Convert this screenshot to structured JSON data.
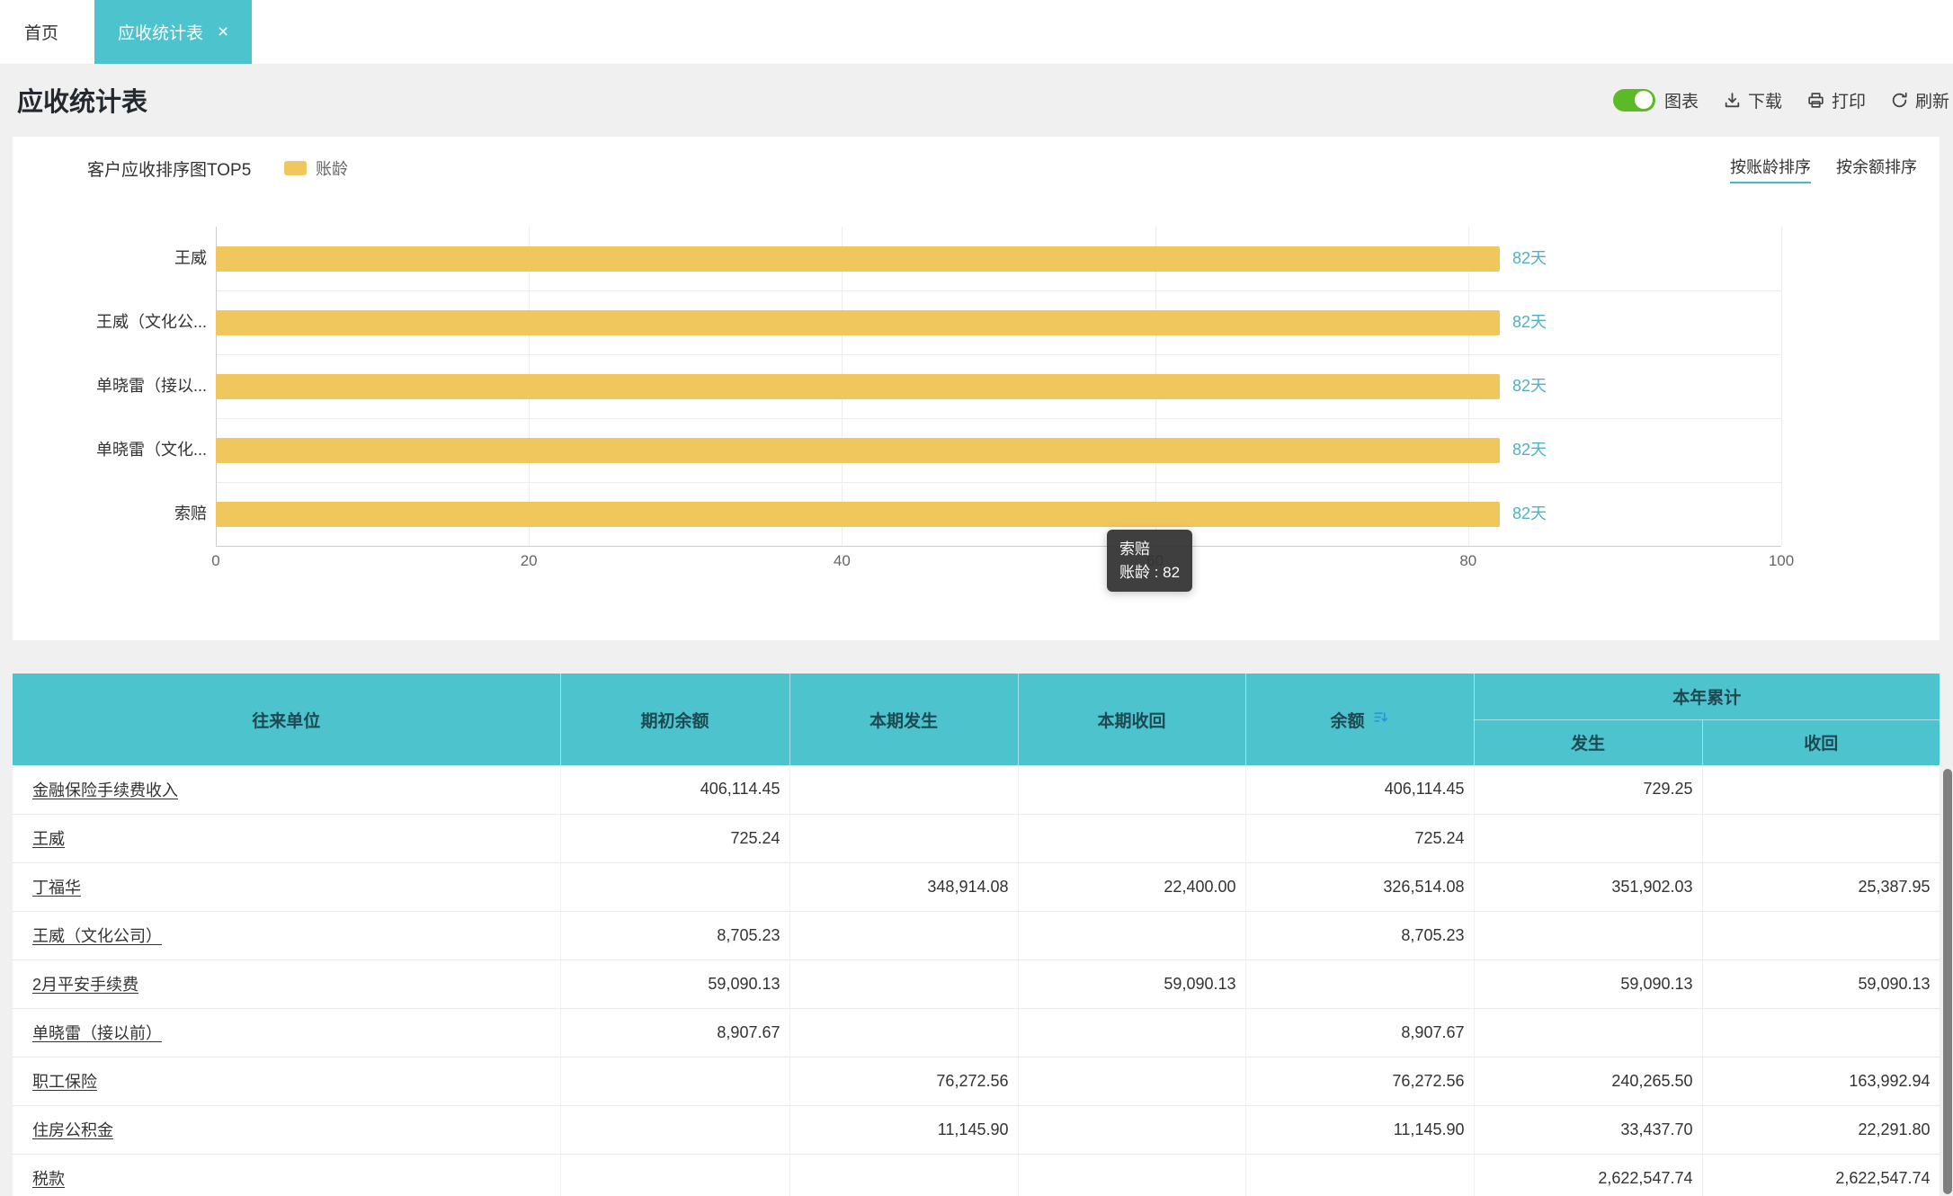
{
  "colors": {
    "teal": "#4CC3CD",
    "bar": "#F0C75C",
    "bar_value_label": "#4FB0C8",
    "toggle_on": "#5DBA27",
    "tooltip_bg": "#303030"
  },
  "tabs": [
    {
      "label": "首页"
    },
    {
      "label": "应收统计表",
      "close": "×"
    }
  ],
  "toolbar": {
    "title": "应收统计表",
    "toggle_label": "图表",
    "download_label": "下载",
    "print_label": "打印",
    "refresh_label": "刷新"
  },
  "chart": {
    "title": "客户应收排序图TOP5",
    "legend_label": "账龄",
    "sort_by_age": "按账龄排序",
    "sort_by_balance": "按余额排序",
    "tooltip": {
      "name": "索赔",
      "value": "账龄 : 82"
    }
  },
  "chart_data": {
    "type": "bar",
    "orientation": "horizontal",
    "title": "客户应收排序图TOP5",
    "series_name": "账龄",
    "categories": [
      "王威",
      "王威（文化公...",
      "单晓雷（接以...",
      "单晓雷（文化...",
      "索赔"
    ],
    "values": [
      82,
      82,
      82,
      82,
      82
    ],
    "value_labels": [
      "82天",
      "82天",
      "82天",
      "82天",
      "82天"
    ],
    "xlim": [
      0,
      100
    ],
    "xticks": [
      0,
      20,
      40,
      60,
      80,
      100
    ],
    "legend_position": "top-left",
    "grid": true
  },
  "table": {
    "headers": {
      "unit": "往来单位",
      "opening_balance": "期初余额",
      "current_incurred": "本期发生",
      "current_recovered": "本期收回",
      "balance": "余额",
      "ytd": "本年累计",
      "ytd_incurred": "发生",
      "ytd_recovered": "收回"
    },
    "rows": [
      [
        "金融保险手续费收入",
        "406,114.45",
        "",
        "",
        "406,114.45",
        "729.25",
        ""
      ],
      [
        "王威",
        "725.24",
        "",
        "",
        "725.24",
        "",
        ""
      ],
      [
        "丁福华",
        "",
        "348,914.08",
        "22,400.00",
        "326,514.08",
        "351,902.03",
        "25,387.95"
      ],
      [
        "王威（文化公司）",
        "8,705.23",
        "",
        "",
        "8,705.23",
        "",
        ""
      ],
      [
        "2月平安手续费",
        "59,090.13",
        "",
        "59,090.13",
        "",
        "59,090.13",
        "59,090.13"
      ],
      [
        "单晓雷（接以前）",
        "8,907.67",
        "",
        "",
        "8,907.67",
        "",
        ""
      ],
      [
        "职工保险",
        "",
        "76,272.56",
        "",
        "76,272.56",
        "240,265.50",
        "163,992.94"
      ],
      [
        "住房公积金",
        "",
        "11,145.90",
        "",
        "11,145.90",
        "33,437.70",
        "22,291.80"
      ],
      [
        "税款",
        "",
        "",
        "",
        "",
        "2,622,547.74",
        "2,622,547.74"
      ]
    ]
  }
}
